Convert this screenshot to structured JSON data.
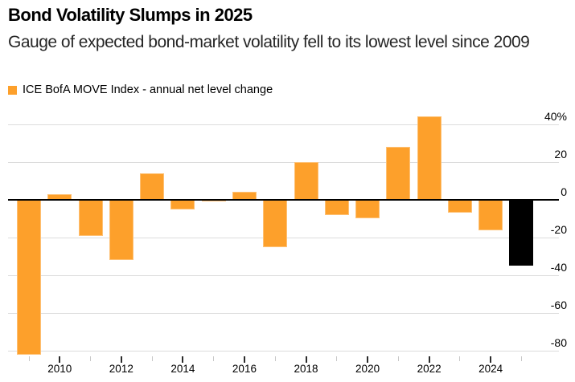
{
  "header": {
    "title": "Bond Volatility Slumps in 2025",
    "subtitle": "Gauge of expected bond-market volatility fell to its lowest level since 2009"
  },
  "legend": {
    "label": "ICE BofA MOVE Index - annual net level change"
  },
  "colors": {
    "bar": "#FDA02B",
    "bar_highlight": "#000000",
    "grid": "#DCDCDC",
    "zero_line": "#000000",
    "tick_major": "#2B2B2B",
    "tick_minor": "#C8C8C8",
    "text": "#000000"
  },
  "chart_data": {
    "type": "bar",
    "title": "Bond Volatility Slumps in 2025",
    "subtitle": "Gauge of expected bond-market volatility fell to its lowest level since 2009",
    "series_name": "ICE BofA MOVE Index - annual net level change",
    "unit": "%",
    "categories": [
      "2009",
      "2010",
      "2011",
      "2012",
      "2013",
      "2014",
      "2015",
      "2016",
      "2017",
      "2018",
      "2019",
      "2020",
      "2021",
      "2022",
      "2023",
      "2024",
      "2025"
    ],
    "values": [
      -82,
      3,
      -19,
      -32,
      14,
      -5,
      -1,
      4,
      -25,
      20,
      -8,
      -10,
      28,
      44,
      -7,
      -16,
      -35
    ],
    "highlight_category": "2025",
    "ylim": [
      -82.8,
      46.2
    ],
    "yticks": [
      40,
      20,
      0,
      -20,
      -40,
      -60,
      -80
    ],
    "ytick_labels": [
      "40%",
      "20",
      "0",
      "-20",
      "-40",
      "-60",
      "-80"
    ],
    "x_major_ticks": [
      "2010",
      "2012",
      "2014",
      "2016",
      "2018",
      "2020",
      "2022",
      "2024"
    ],
    "grid": "horizontal",
    "legend_position": "top-left",
    "y_axis_side": "right"
  }
}
